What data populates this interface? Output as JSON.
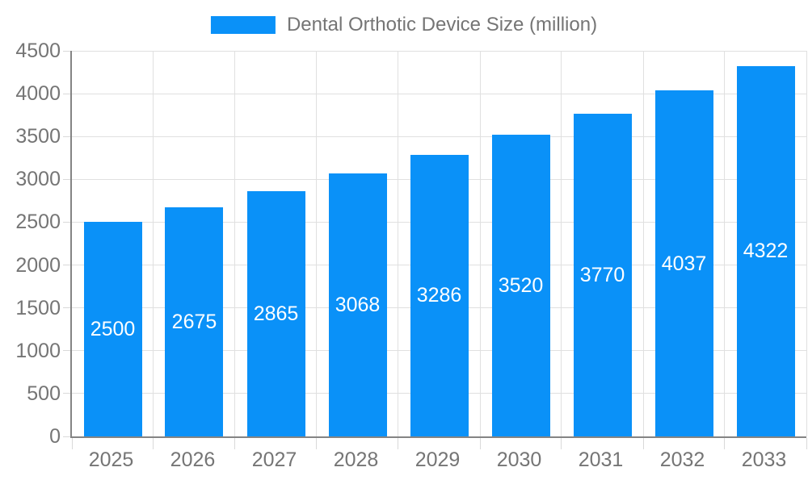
{
  "chart_data": {
    "type": "bar",
    "title": "",
    "legend_label": "Dental Orthotic Device Size (million)",
    "legend_position": "top-center",
    "categories": [
      "2025",
      "2026",
      "2027",
      "2028",
      "2029",
      "2030",
      "2031",
      "2032",
      "2033"
    ],
    "values": [
      2500,
      2675,
      2865,
      3068,
      3286,
      3520,
      3770,
      4037,
      4322
    ],
    "xlabel": "",
    "ylabel": "",
    "ylim": [
      0,
      4500
    ],
    "ytick_step": 500,
    "grid": true,
    "colors": {
      "bar": "#0a91f8",
      "bar_label": "#ffffff",
      "axis_line": "#848484",
      "gridline": "#e0e0e0",
      "tick": "#d9d9d9",
      "text": "#757575",
      "background": "#ffffff"
    }
  }
}
